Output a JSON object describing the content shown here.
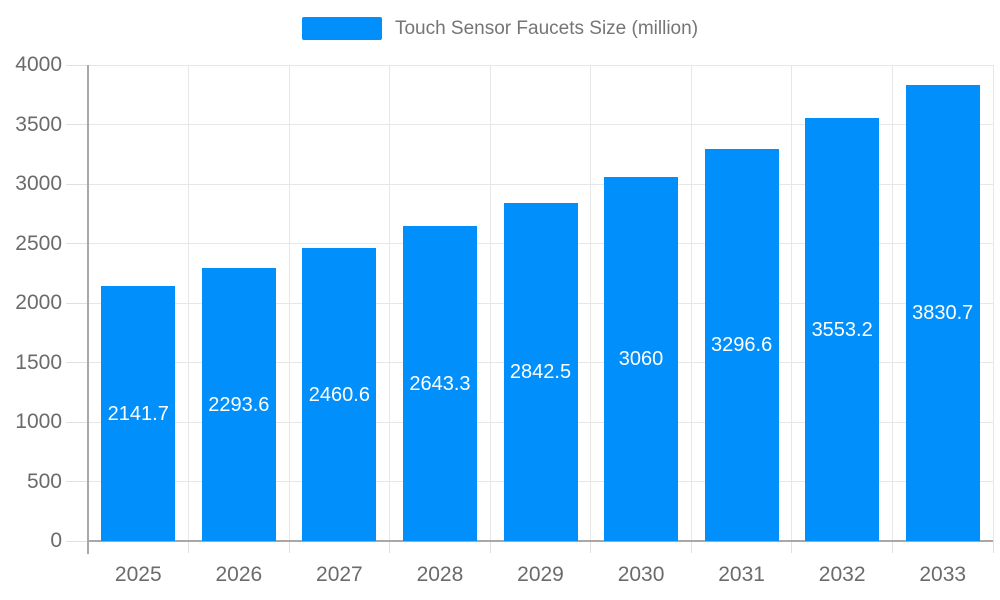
{
  "legend": {
    "label": "Touch Sensor Faucets Size (million)",
    "swatch_color": "#008FFB"
  },
  "chart_data": {
    "type": "bar",
    "title": "Touch Sensor Faucets Size (million)",
    "categories": [
      "2025",
      "2026",
      "2027",
      "2028",
      "2029",
      "2030",
      "2031",
      "2032",
      "2033"
    ],
    "series": [
      {
        "name": "Touch Sensor Faucets Size (million)",
        "values": [
          2141.7,
          2293.6,
          2460.6,
          2643.3,
          2842.5,
          3060,
          3296.6,
          3553.2,
          3830.7
        ]
      }
    ],
    "data_labels": [
      "2141.7",
      "2293.6",
      "2460.6",
      "2643.3",
      "2842.5",
      "3060",
      "3296.6",
      "3553.2",
      "3830.7"
    ],
    "xlabel": "",
    "ylabel": "",
    "ylim": [
      0,
      4000
    ],
    "ytick_values": [
      0,
      500,
      1000,
      1500,
      2000,
      2500,
      3000,
      3500,
      4000
    ],
    "ytick_labels": [
      "0",
      "500",
      "1000",
      "1500",
      "2000",
      "2500",
      "3000",
      "3500",
      "4000"
    ],
    "grid": true,
    "legend_position": "top",
    "bar_color": "#008FFB",
    "data_label_color": "#ffffff"
  },
  "colors": {
    "bar": "#008FFB",
    "grid": "#e7e7e7",
    "tick": "#e0e0e0",
    "axis_line": "#a8a8a8",
    "axis_text": "#6b6b6b",
    "legend_text": "#757575",
    "data_label": "#ffffff",
    "background": "#ffffff"
  }
}
